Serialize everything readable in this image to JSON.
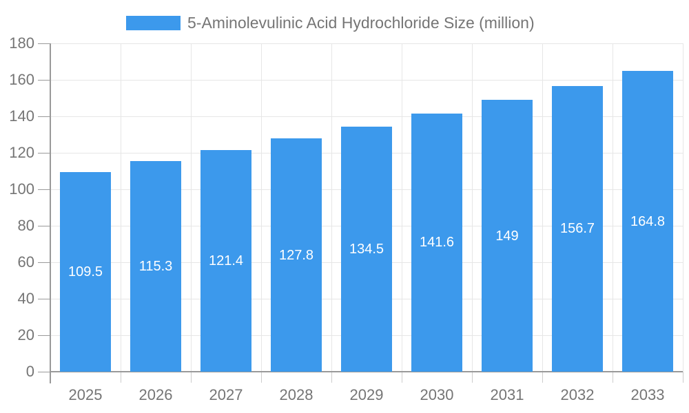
{
  "legend": {
    "label": "5-Aminolevulinic Acid Hydrochloride Size (million)"
  },
  "chart_data": {
    "type": "bar",
    "title": "5-Aminolevulinic Acid Hydrochloride Size (million)",
    "categories": [
      "2025",
      "2026",
      "2027",
      "2028",
      "2029",
      "2030",
      "2031",
      "2032",
      "2033"
    ],
    "values": [
      109.5,
      115.3,
      121.4,
      127.8,
      134.5,
      141.6,
      149,
      156.7,
      164.8
    ],
    "value_labels": [
      "109.5",
      "115.3",
      "121.4",
      "127.8",
      "134.5",
      "141.6",
      "149",
      "156.7",
      "164.8"
    ],
    "xlabel": "",
    "ylabel": "",
    "ylim": [
      0,
      180
    ],
    "ytick_step": 20,
    "yticks": [
      0,
      20,
      40,
      60,
      80,
      100,
      120,
      140,
      160,
      180
    ],
    "grid": "both",
    "legend_position": "top"
  },
  "colors": {
    "bar": "#3C99EC",
    "bar_value_label": "#ffffff",
    "axis_line": "#999999",
    "gridline": "#e6e6e6",
    "x_tick": "#cccccc",
    "y_tick": "#999999",
    "tick_label": "#757575",
    "legend_text": "#757575",
    "background": "#ffffff"
  }
}
